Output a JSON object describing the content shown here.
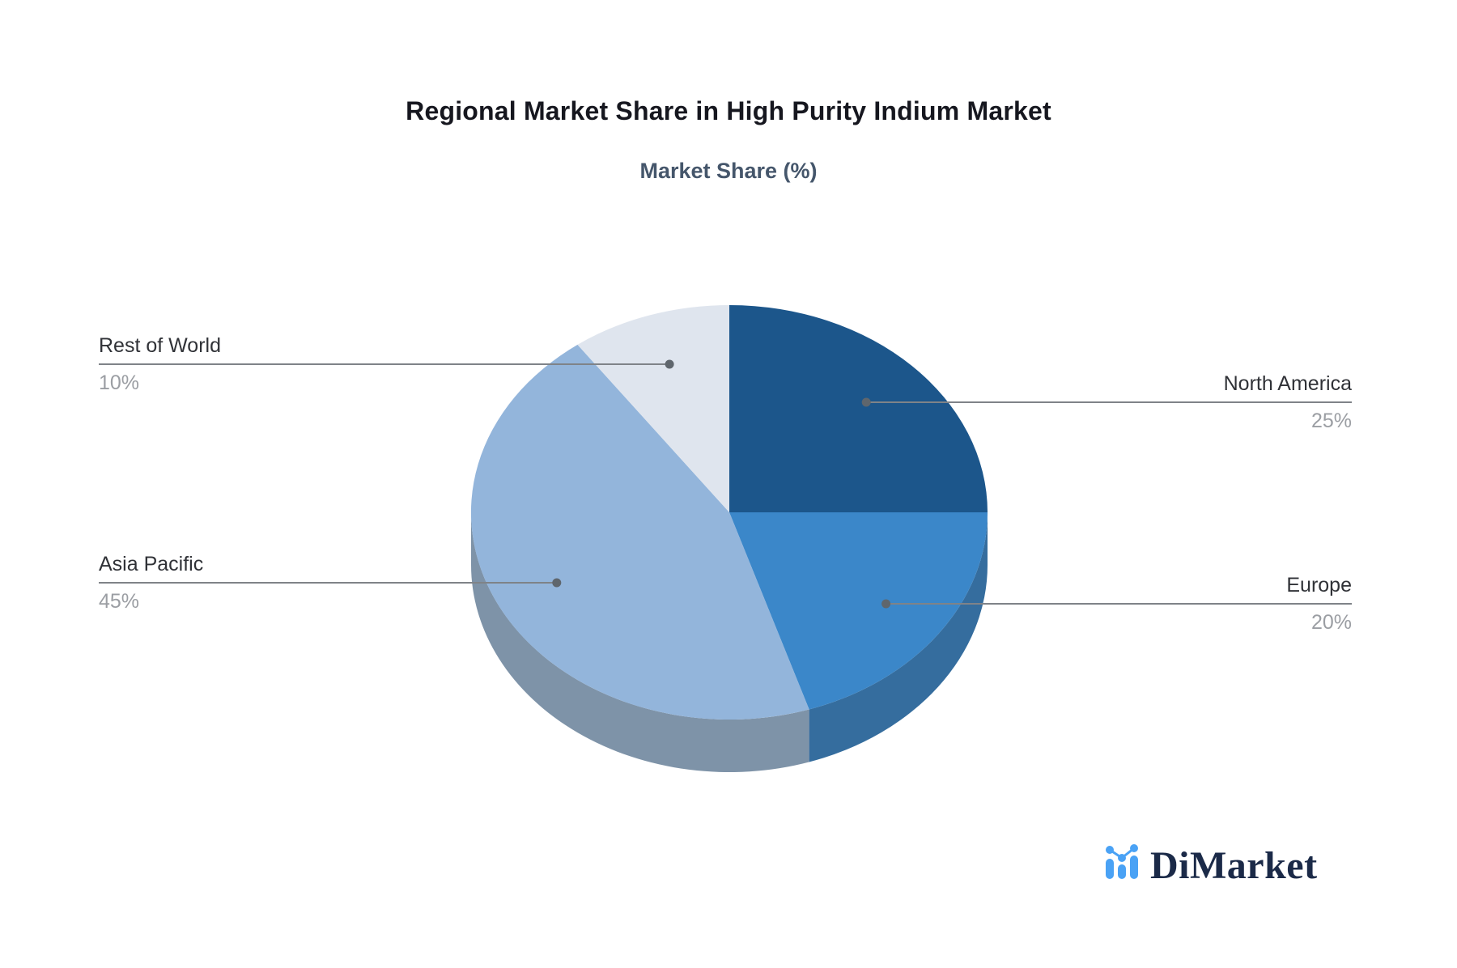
{
  "chart_data": {
    "type": "pie",
    "style": "3d",
    "title": "Regional Market Share in High Purity Indium Market",
    "subtitle": "Market Share (%)",
    "unit": "%",
    "direction": "clockwise",
    "start_angle_deg": 0,
    "legend_position": "none",
    "labels_layout": "callout-leader-lines",
    "slices": [
      {
        "label": "North America",
        "value": 25,
        "display_value": "25%",
        "color": "#1c568b",
        "side_color": "#154876",
        "callout_side": "right"
      },
      {
        "label": "Europe",
        "value": 20,
        "display_value": "20%",
        "color": "#3b87c9",
        "side_color": "#356d9e",
        "callout_side": "right"
      },
      {
        "label": "Asia Pacific",
        "value": 45,
        "display_value": "45%",
        "color": "#93b5db",
        "side_color": "#7e93a8",
        "callout_side": "left"
      },
      {
        "label": "Rest of World",
        "value": 10,
        "display_value": "10%",
        "color": "#dfe5ee",
        "side_color": "#b6c3d4",
        "callout_side": "left"
      }
    ]
  },
  "logo": {
    "text": "DiMarket",
    "icon": "bar-chart-trend-icon",
    "icon_color": "#4aa2f5",
    "text_color": "#1b2a48"
  },
  "colors": {
    "background": "#ffffff",
    "title_text": "#16171f",
    "subtitle_text": "#45566b",
    "label_text": "#303237",
    "value_text": "#9b9ea3",
    "leader_line": "#7f8388",
    "leader_dot": "#5f666d"
  }
}
